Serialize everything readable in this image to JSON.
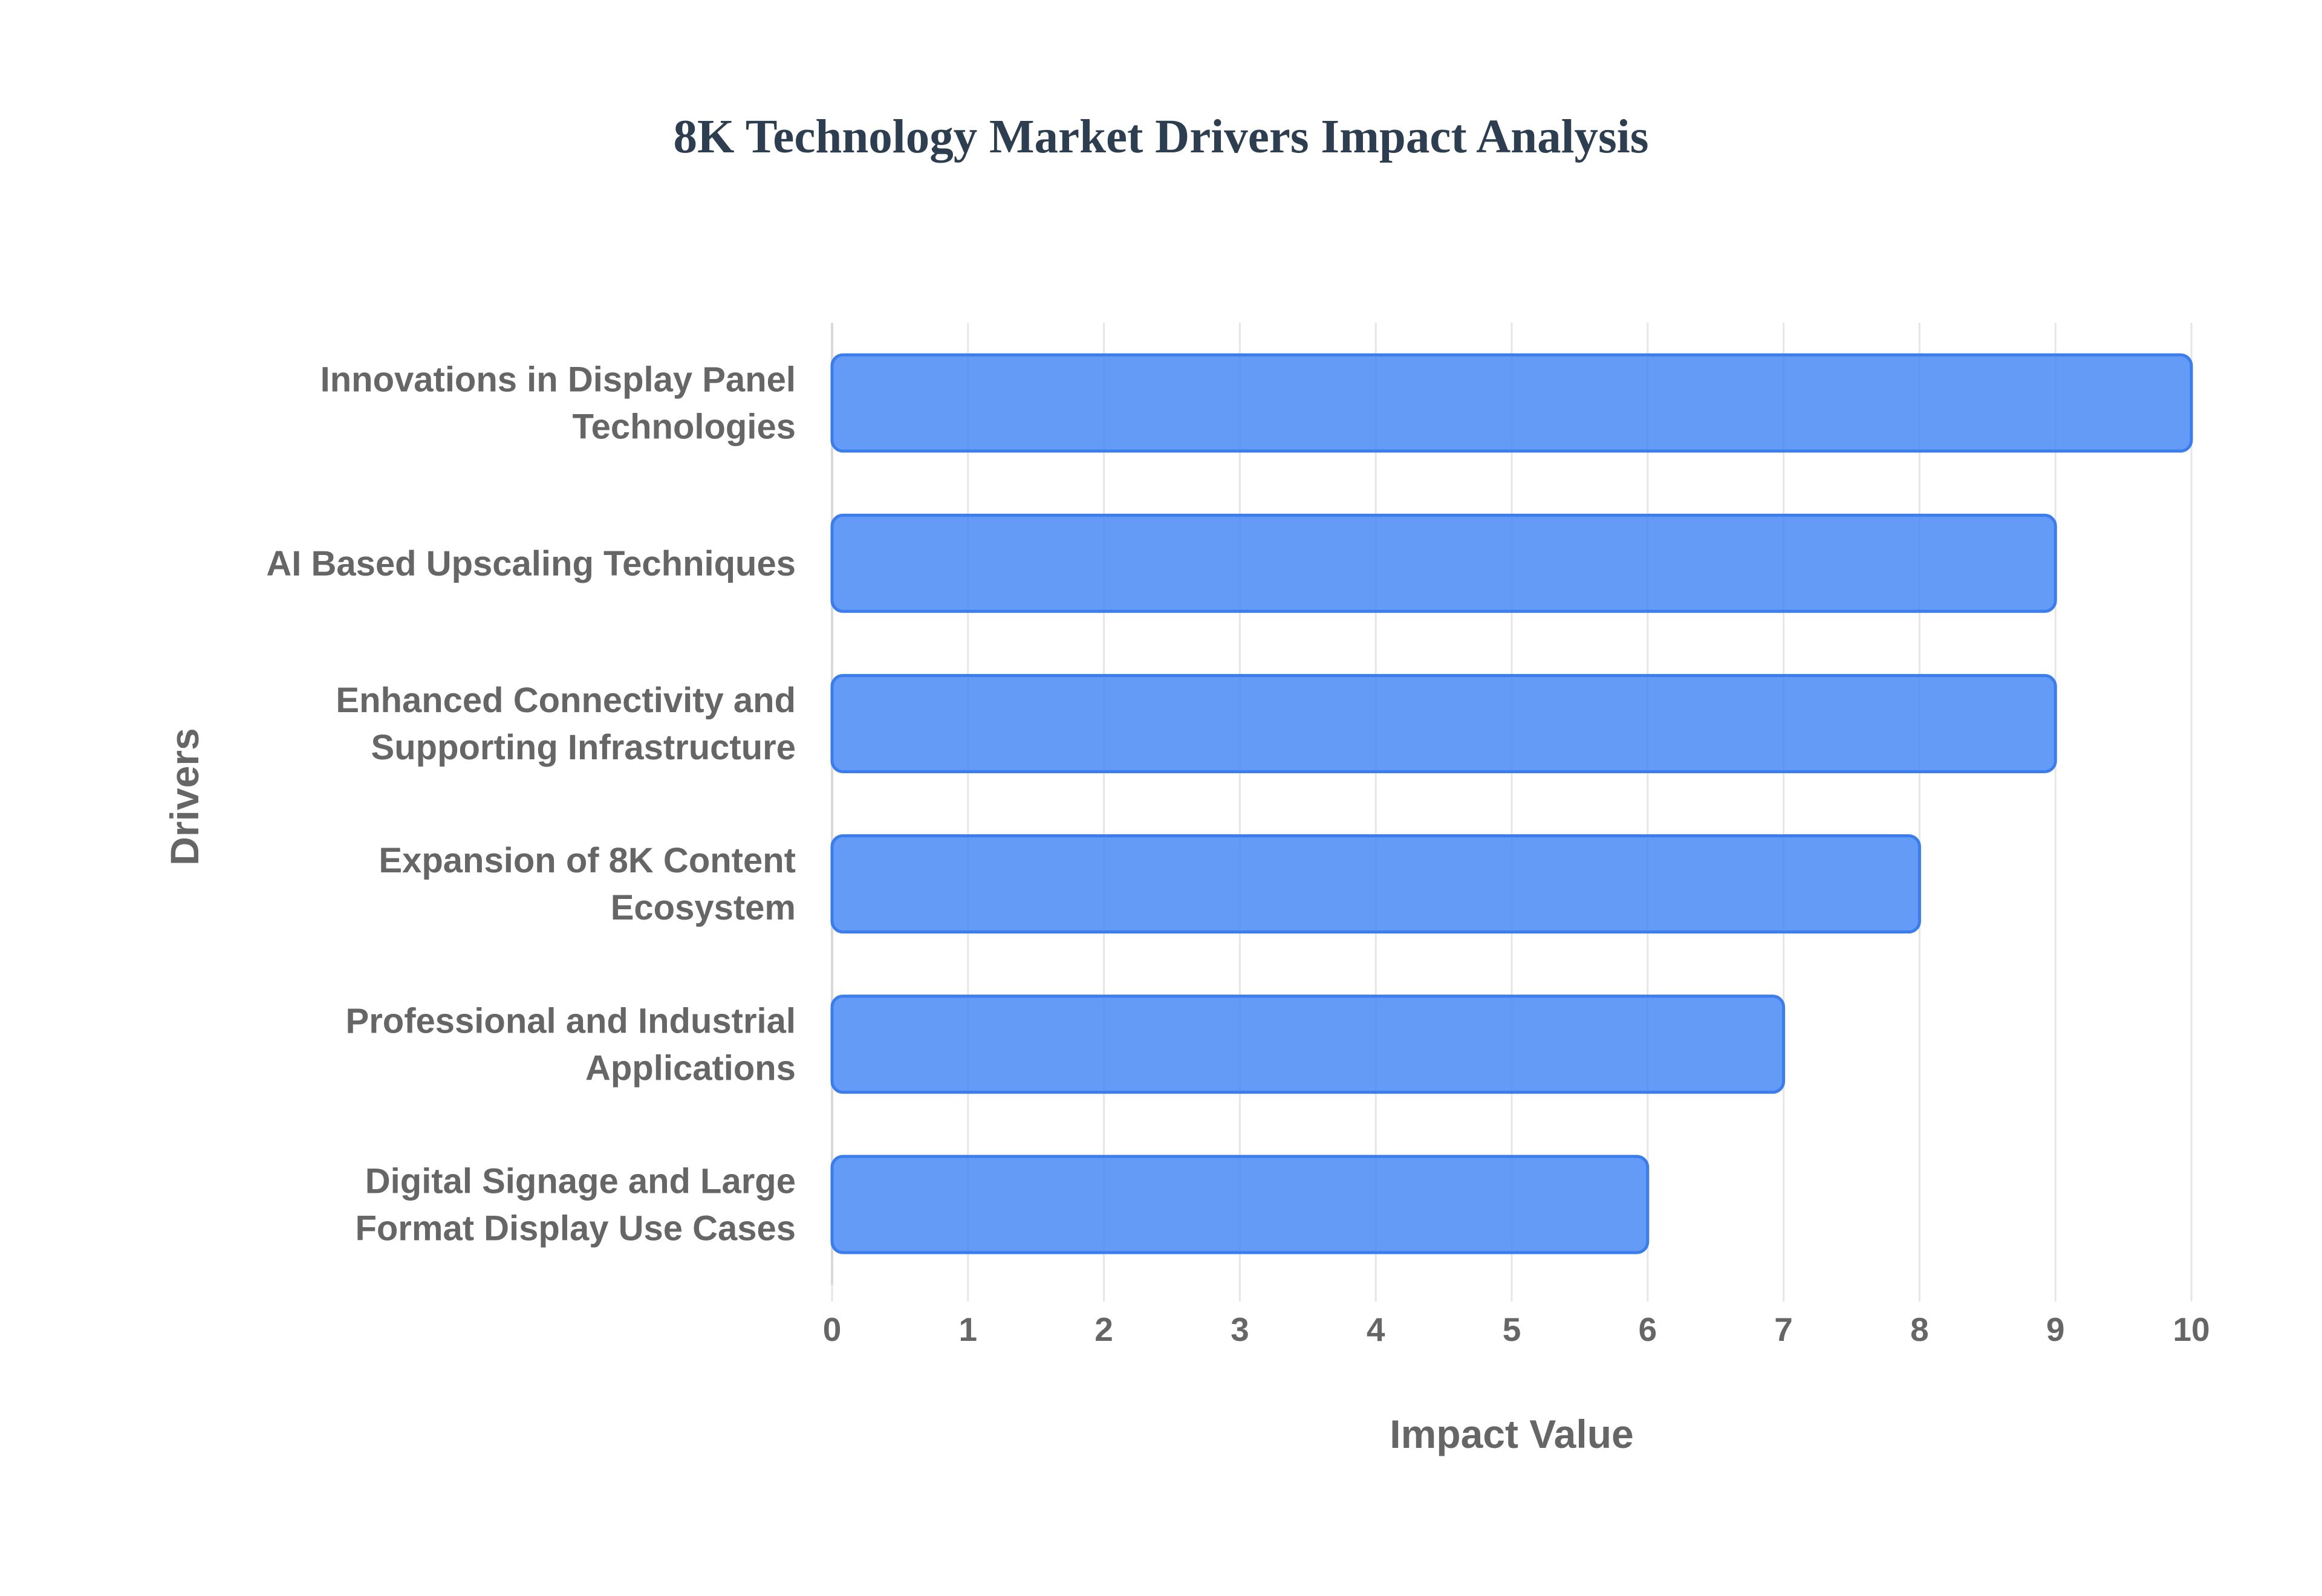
{
  "chart_data": {
    "type": "bar",
    "orientation": "horizontal",
    "title": "8K Technology Market Drivers Impact Analysis",
    "xlabel": "Impact Value",
    "ylabel": "Drivers",
    "categories": [
      [
        "Innovations in Display Panel",
        "Technologies"
      ],
      [
        "AI Based Upscaling Techniques"
      ],
      [
        "Enhanced Connectivity and",
        "Supporting Infrastructure"
      ],
      [
        "Expansion of 8K Content",
        "Ecosystem"
      ],
      [
        "Professional and Industrial",
        "Applications"
      ],
      [
        "Digital Signage and Large",
        "Format Display Use Cases"
      ]
    ],
    "values": [
      10,
      9,
      9,
      8,
      7,
      6
    ],
    "xlim": [
      0,
      10
    ],
    "xticks": [
      "0",
      "1",
      "2",
      "3",
      "4",
      "5",
      "6",
      "7",
      "8",
      "9",
      "10"
    ],
    "grid": "vertical",
    "legend": "none",
    "colors": {
      "bar_fill": "#4285f4",
      "bar_border": "#3b7ded",
      "title": "#2c3e50",
      "labels": "#666666"
    }
  }
}
